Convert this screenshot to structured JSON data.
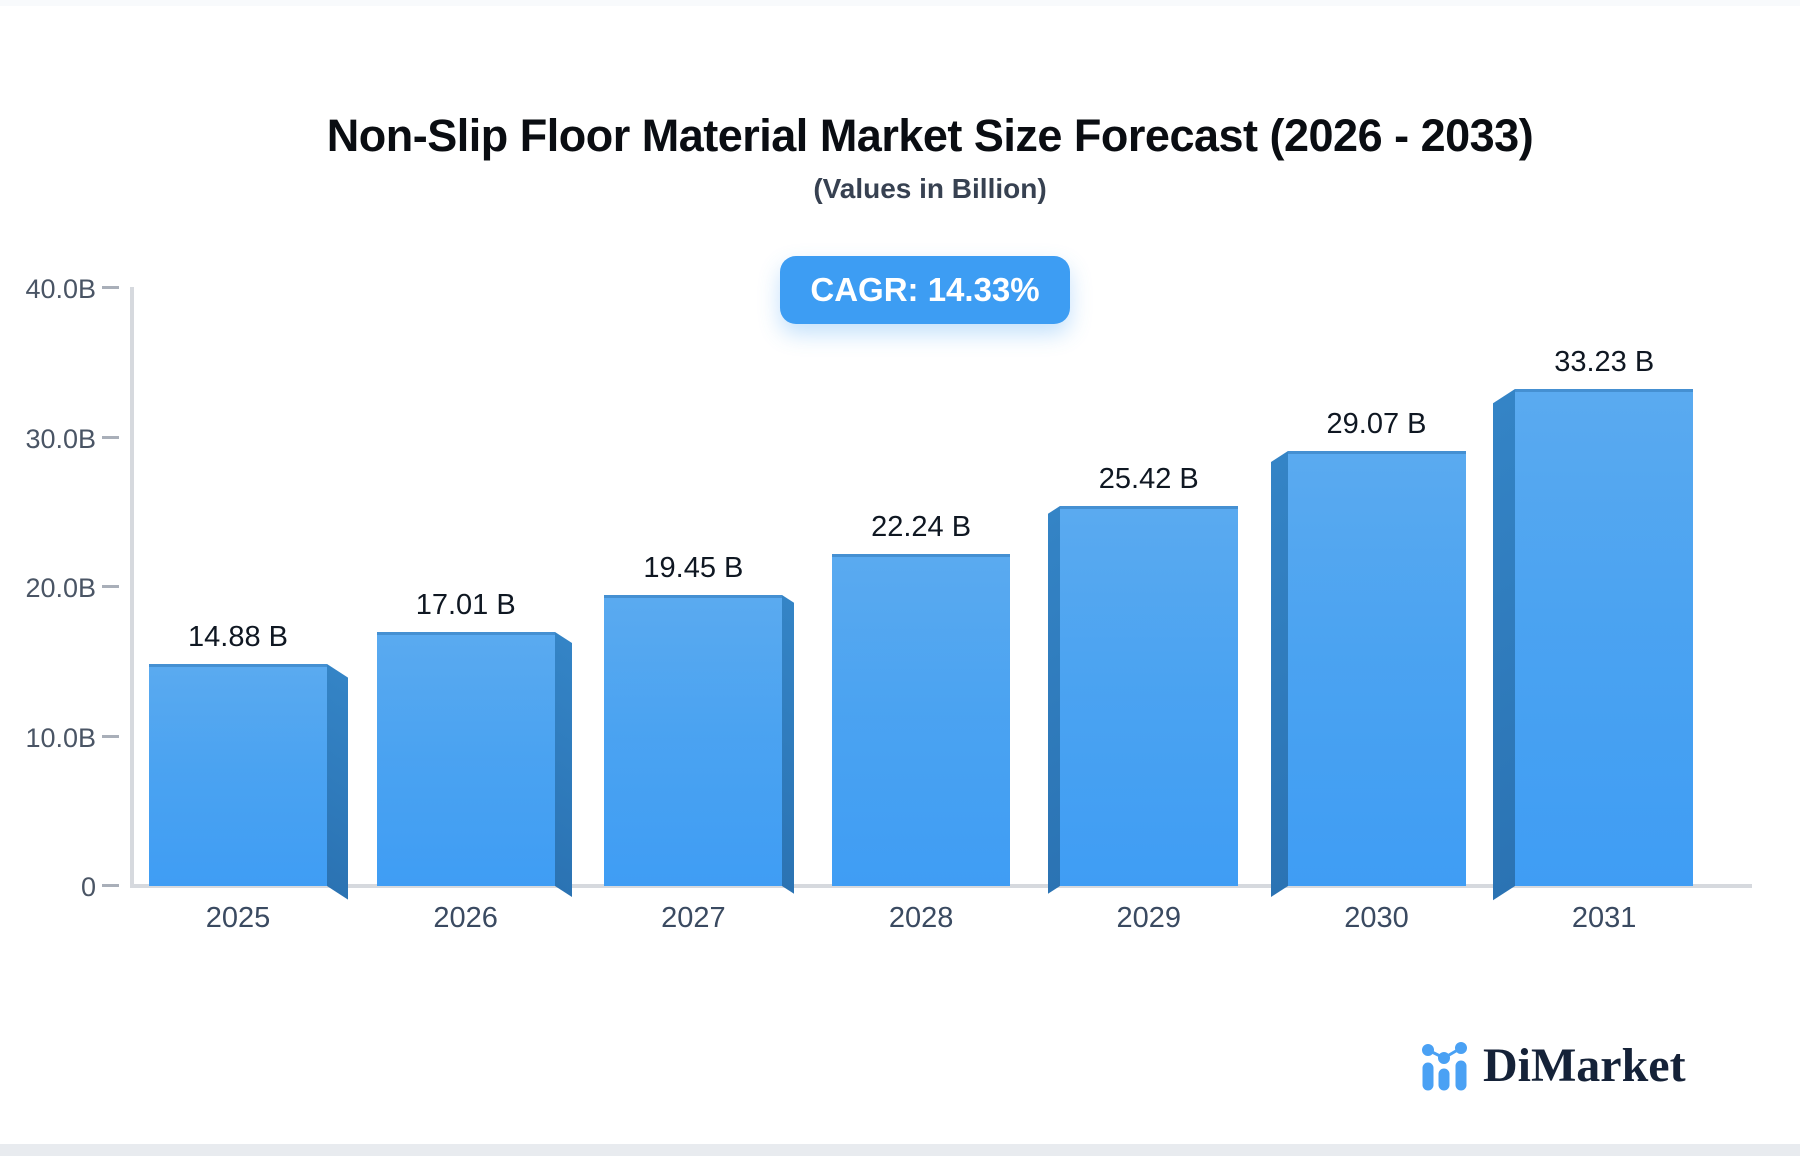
{
  "header": {
    "title": "Non-Slip Floor Material Market Size Forecast (2026 - 2033)",
    "subtitle": "(Values in Billion)"
  },
  "badge": {
    "label": "CAGR: 14.33%",
    "bg": "#3d9df3"
  },
  "chart_data": {
    "type": "bar",
    "title": "Non-Slip Floor Material Market Size Forecast (2026 - 2033)",
    "subtitle": "(Values in Billion)",
    "categories": [
      "2025",
      "2026",
      "2027",
      "2028",
      "2029",
      "2030",
      "2031"
    ],
    "values": [
      14.88,
      17.01,
      19.45,
      22.24,
      25.42,
      29.07,
      33.23
    ],
    "bar_labels": [
      "14.88 B",
      "17.01 B",
      "19.45 B",
      "22.24 B",
      "25.42 B",
      "29.07 B",
      "33.23 B"
    ],
    "yticks": [
      {
        "label": "40.0B",
        "value": 40
      },
      {
        "label": "30.0B",
        "value": 30
      },
      {
        "label": "20.0B",
        "value": 20
      },
      {
        "label": "10.0B",
        "value": 10
      },
      {
        "label": "0",
        "value": 0
      }
    ],
    "ylim": [
      0,
      40
    ],
    "grid": false,
    "legend": "none",
    "colors": {
      "bar_face_top": "#5aaaf0",
      "bar_face_bottom": "#3f9df4",
      "bar_side": "#2d77b8",
      "bar_top_edge": "#4590d2",
      "axis_line": "#d6d9de",
      "tick_label": "#4a5565",
      "x_label": "#3a4a61",
      "data_label": "#0f1722"
    }
  },
  "logo": {
    "text": "DiMarket",
    "color": "#152238",
    "icon": "bar-chart-trend-icon",
    "icon_color": "#4aa1f4"
  }
}
